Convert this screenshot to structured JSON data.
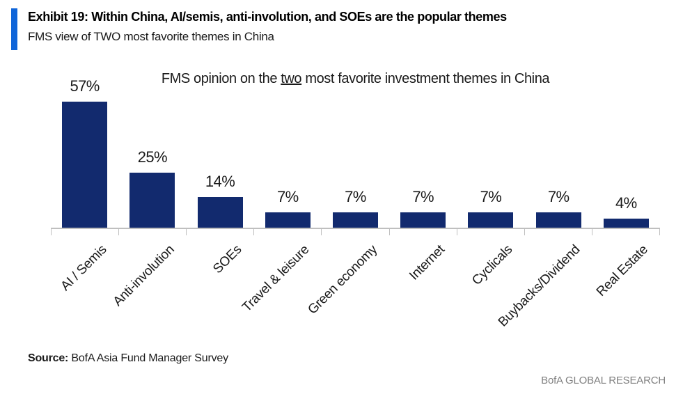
{
  "header": {
    "exhibit_title": "Exhibit 19: Within China, AI/semis, anti-involution, and SOEs are the popular themes",
    "subtitle": "FMS view of TWO most favorite themes in China"
  },
  "chart_data": {
    "type": "bar",
    "title": "FMS opinion on the two most favorite investment themes in China",
    "title_parts": {
      "prefix": "FMS opinion on the ",
      "underlined": "two",
      "suffix": " most favorite investment themes in China"
    },
    "categories": [
      "AI / Semis",
      "Anti-involution",
      "SOEs",
      "Travel & leisure",
      "Green economy",
      "Internet",
      "Cyclicals",
      "Buybacks/Dividend",
      "Real Estate"
    ],
    "values": [
      57,
      25,
      14,
      7,
      7,
      7,
      7,
      7,
      4
    ],
    "value_labels": [
      "57%",
      "25%",
      "14%",
      "7%",
      "7%",
      "7%",
      "7%",
      "7%",
      "4%"
    ],
    "value_suffix": "%",
    "xlabel": "",
    "ylabel": "",
    "ylim": [
      0,
      60
    ],
    "grid": false,
    "legend": false,
    "x_label_rotation_deg": -45,
    "bar_color": "#122a6e",
    "axis_color": "#bfbfbf"
  },
  "footer": {
    "source_label": "Source:",
    "source_text": "BofA Asia Fund Manager Survey",
    "branding": "BofA GLOBAL RESEARCH"
  },
  "colors": {
    "accent_bar": "#0f65d9",
    "bar": "#122a6e",
    "axis": "#bfbfbf",
    "branding_text": "#808080",
    "background": "#ffffff"
  }
}
